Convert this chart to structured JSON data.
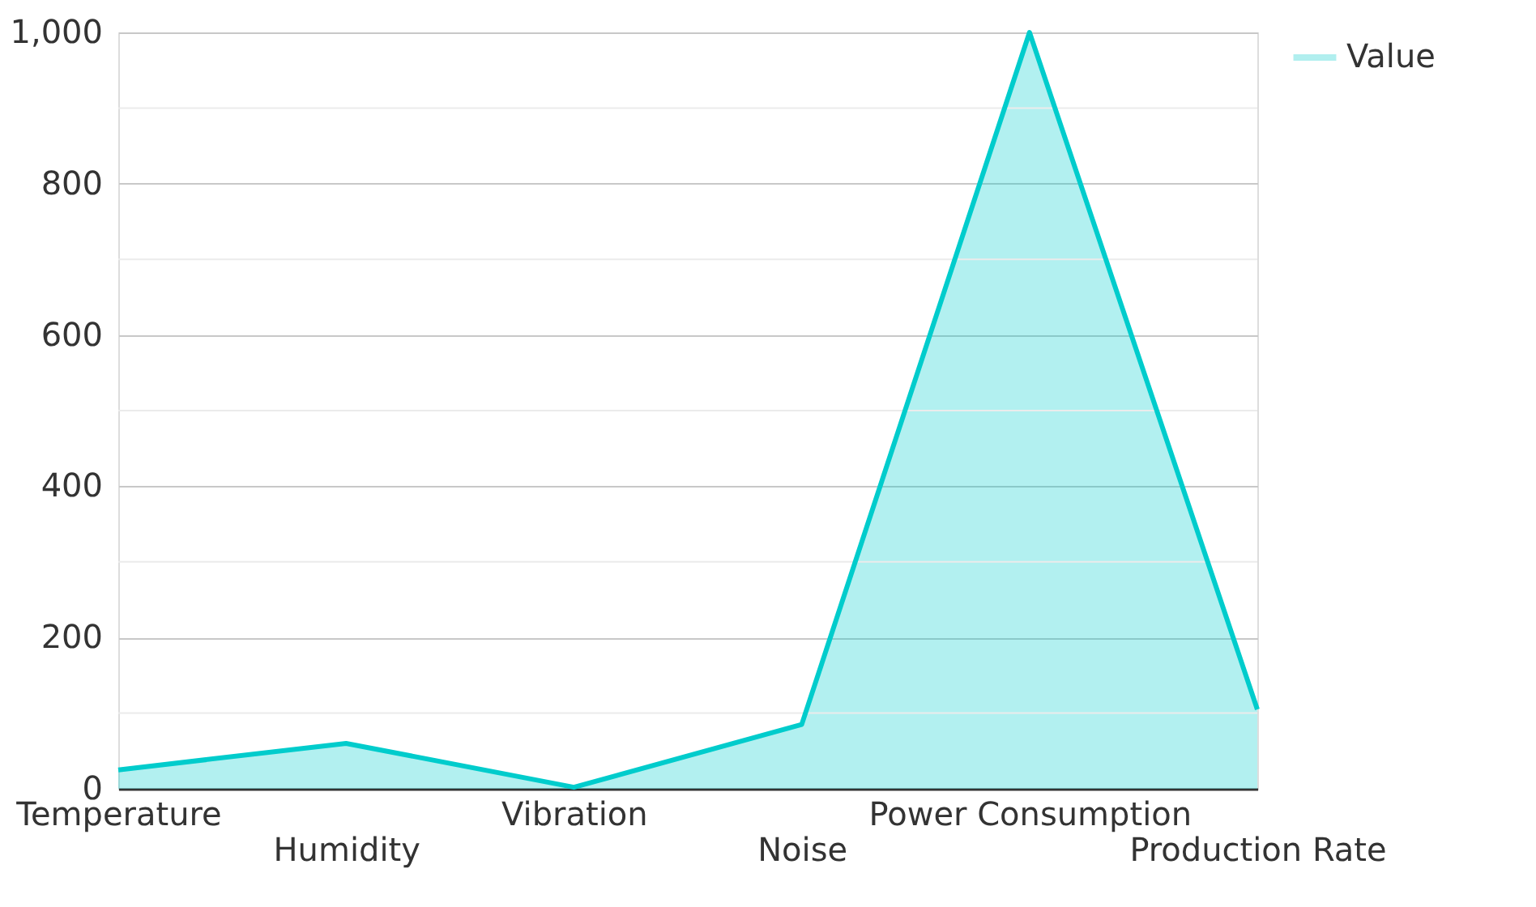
{
  "chart_data": {
    "type": "area",
    "categories": [
      "Temperature",
      "Humidity",
      "Vibration",
      "Noise",
      "Power Consumption",
      "Production Rate"
    ],
    "series": [
      {
        "name": "Value",
        "color": "#00cccc",
        "values": [
          25,
          60,
          2,
          85,
          1000,
          105
        ]
      }
    ],
    "ylim": [
      0,
      1000
    ],
    "yticks": [
      0,
      200,
      400,
      600,
      800,
      {
        "value": 1000,
        "label": "1,000"
      }
    ],
    "grid": "y",
    "legend": "top right"
  }
}
